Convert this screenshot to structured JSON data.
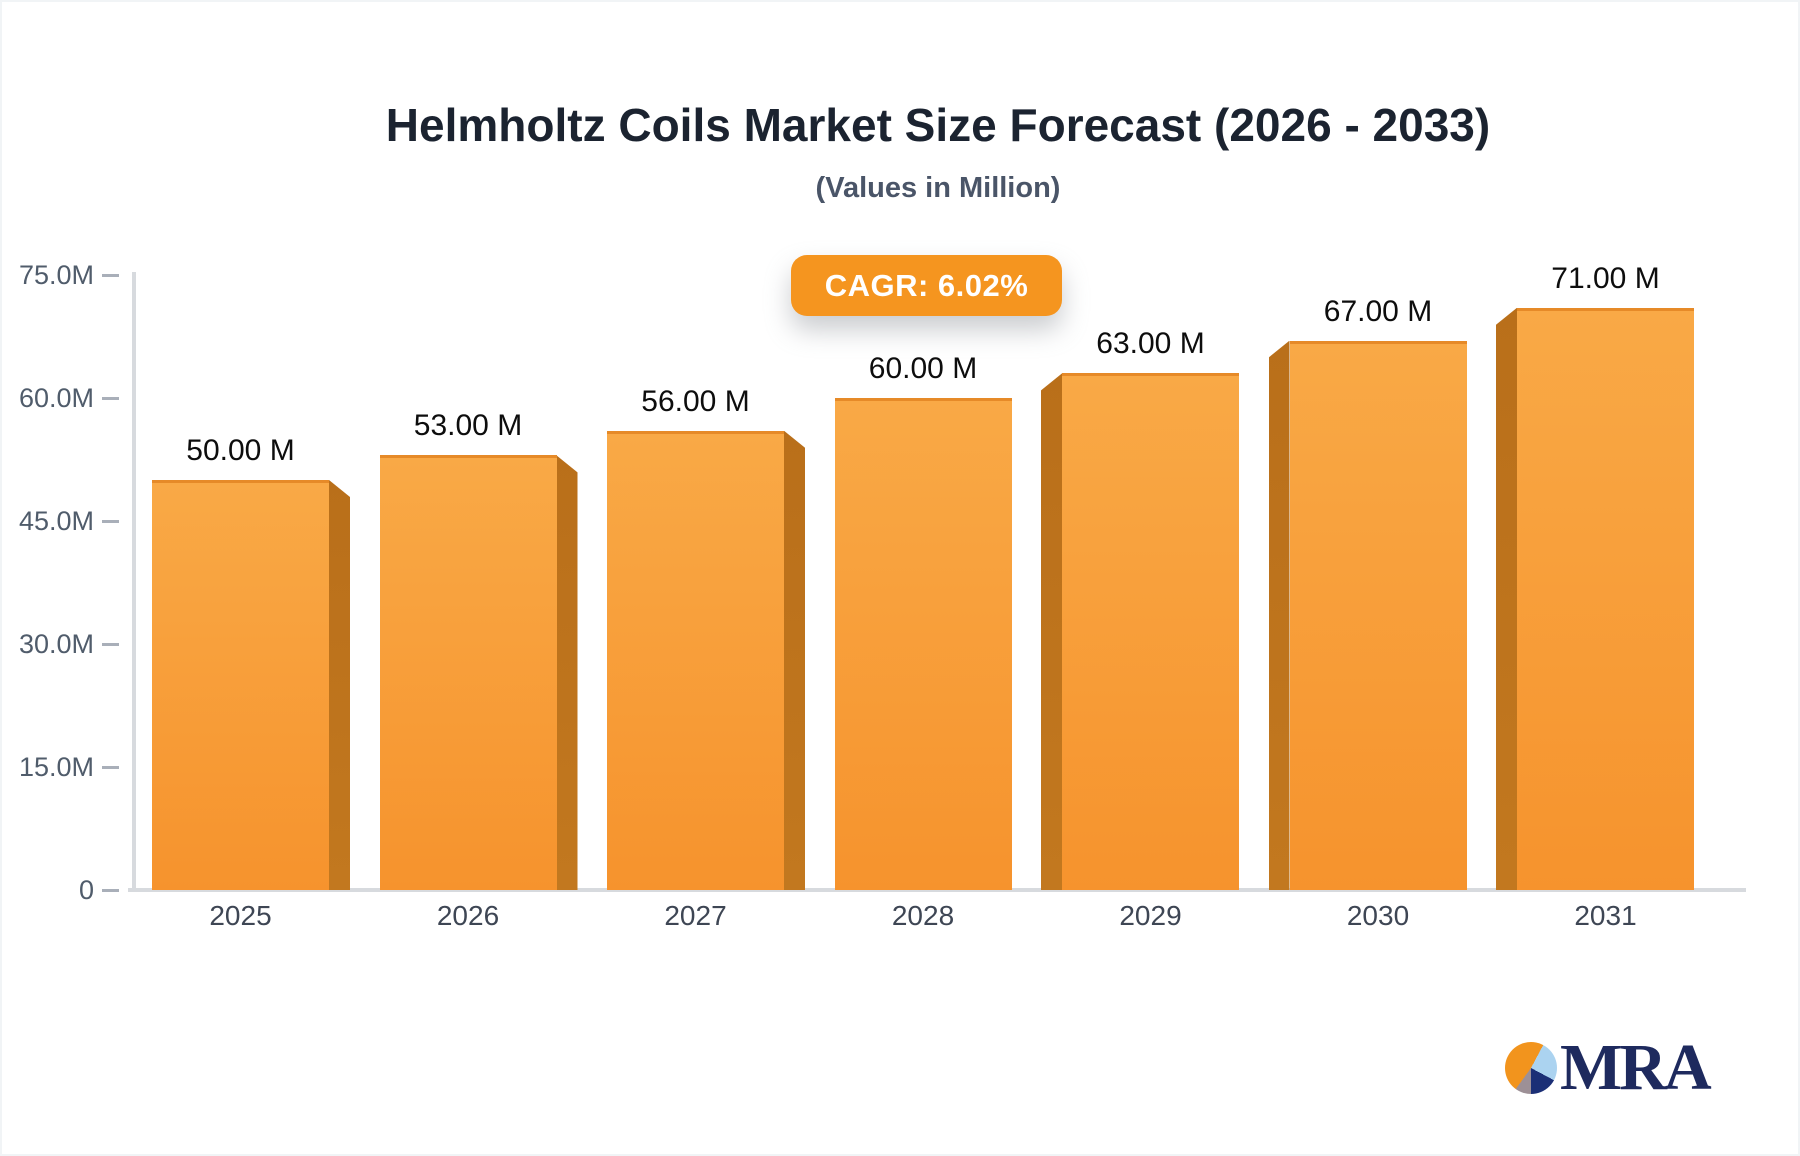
{
  "title": "Helmholtz Coils Market Size Forecast (2026 - 2033)",
  "subtitle": "(Values in Million)",
  "badge": {
    "label": "CAGR: 6.02%",
    "bg_color": "#F5951F",
    "text_color": "#FFFFFF"
  },
  "chart_data": {
    "type": "bar",
    "categories": [
      "2025",
      "2026",
      "2027",
      "2028",
      "2029",
      "2030",
      "2031"
    ],
    "values": [
      50,
      53,
      56,
      60,
      63,
      67,
      71
    ],
    "value_labels": [
      "50.00 M",
      "53.00 M",
      "56.00 M",
      "60.00 M",
      "63.00 M",
      "67.00 M",
      "71.00 M"
    ],
    "y_tick_values": [
      75,
      60,
      45,
      30,
      15,
      0
    ],
    "y_tick_labels": [
      "75.0M",
      "60.0M",
      "45.0M",
      "30.0M",
      "15.0M",
      "0"
    ],
    "ylim": [
      0,
      75
    ],
    "xlabel": "",
    "ylabel": "",
    "grid": false,
    "legend": false,
    "bar_face_top_color": "#F9A946",
    "bar_face_bottom_color": "#F6932D",
    "bar_face_edge_color": "#E68A28",
    "bar_side_color": "#B96F1A",
    "bar_side_color_light": "#C2781F",
    "axis_color": "#D7DADE"
  },
  "logo": {
    "text": "MRA",
    "pie_colors": {
      "orange": "#F2941D",
      "light_blue": "#ABD3F0",
      "navy": "#1B2F76",
      "gray": "#9D9096"
    }
  }
}
